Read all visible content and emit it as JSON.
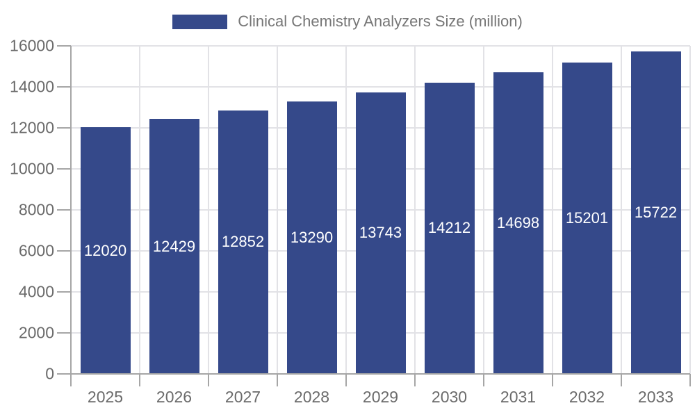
{
  "chart_data": {
    "type": "bar",
    "title": "Clinical Chemistry Analyzers Size (million)",
    "categories": [
      "2025",
      "2026",
      "2027",
      "2028",
      "2029",
      "2030",
      "2031",
      "2032",
      "2033"
    ],
    "values": [
      12020,
      12429,
      12852,
      13290,
      13743,
      14212,
      14698,
      15201,
      15722
    ],
    "value_labels": [
      "12020",
      "12429",
      "12852",
      "13290",
      "13743",
      "14212",
      "14698",
      "15201",
      "15722"
    ],
    "xlabel": "",
    "ylabel": "",
    "ylim": [
      0,
      16000
    ],
    "yticks": [
      0,
      2000,
      4000,
      6000,
      8000,
      10000,
      12000,
      14000,
      16000
    ],
    "grid": true,
    "legend_position": "top-center",
    "colors": {
      "bar": "#35498a",
      "value_label": "#ffffff",
      "grid": "#e2e2e6",
      "axis_line": "#a6a6a6",
      "tick_text": "#6b6b6b",
      "title_text": "#767676",
      "background": "#ffffff"
    }
  }
}
